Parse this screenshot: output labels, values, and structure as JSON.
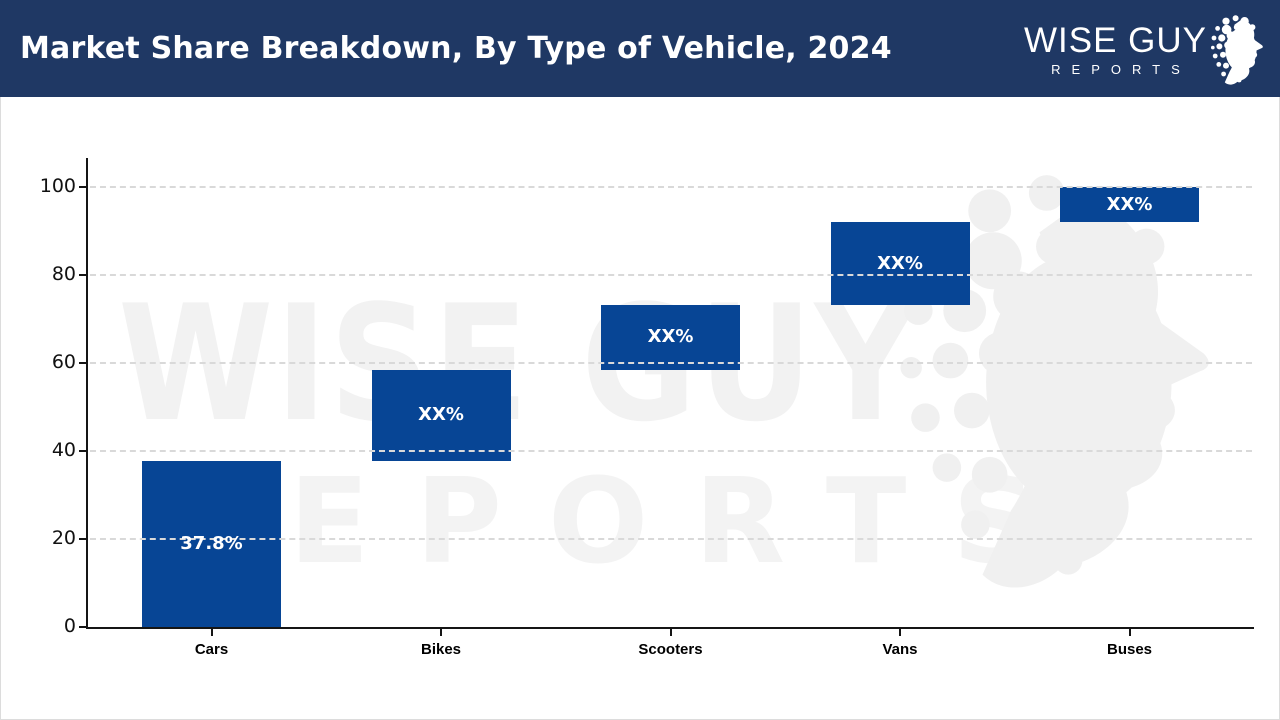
{
  "header": {
    "title": "Market Share Breakdown, By Type of Vehicle, 2024",
    "logo": {
      "line1": "WISE GUY",
      "line2": "REPORTS"
    }
  },
  "watermark": {
    "line1": "WISE GUY",
    "line2": "REPORTS"
  },
  "colors": {
    "header_bg": "#1f3864",
    "bar": "#074595",
    "grid": "#d9d9d9",
    "axis": "#151515",
    "watermark": "#f2f2f2",
    "bar_label": "#ffffff"
  },
  "chart_data": {
    "type": "bar",
    "subtype": "waterfall",
    "title": "Market Share Breakdown, By Type of Vehicle, 2024",
    "categories": [
      "Cars",
      "Bikes",
      "Scooters",
      "Vans",
      "Buses"
    ],
    "segments": [
      {
        "category": "Cars",
        "start": 0,
        "end": 37.8,
        "label": "37.8%"
      },
      {
        "category": "Bikes",
        "start": 37.8,
        "end": 58.5,
        "label": "XX%"
      },
      {
        "category": "Scooters",
        "start": 58.5,
        "end": 73.2,
        "label": "XX%"
      },
      {
        "category": "Vans",
        "start": 73.2,
        "end": 92.0,
        "label": "XX%"
      },
      {
        "category": "Buses",
        "start": 92.0,
        "end": 100.0,
        "label": "XX%"
      }
    ],
    "ylim": [
      0,
      100
    ],
    "yticks": [
      0,
      20,
      40,
      60,
      80,
      100
    ],
    "grid": {
      "axis": "y",
      "style": "dashed",
      "color": "#d9d9d9"
    },
    "legend": null
  }
}
